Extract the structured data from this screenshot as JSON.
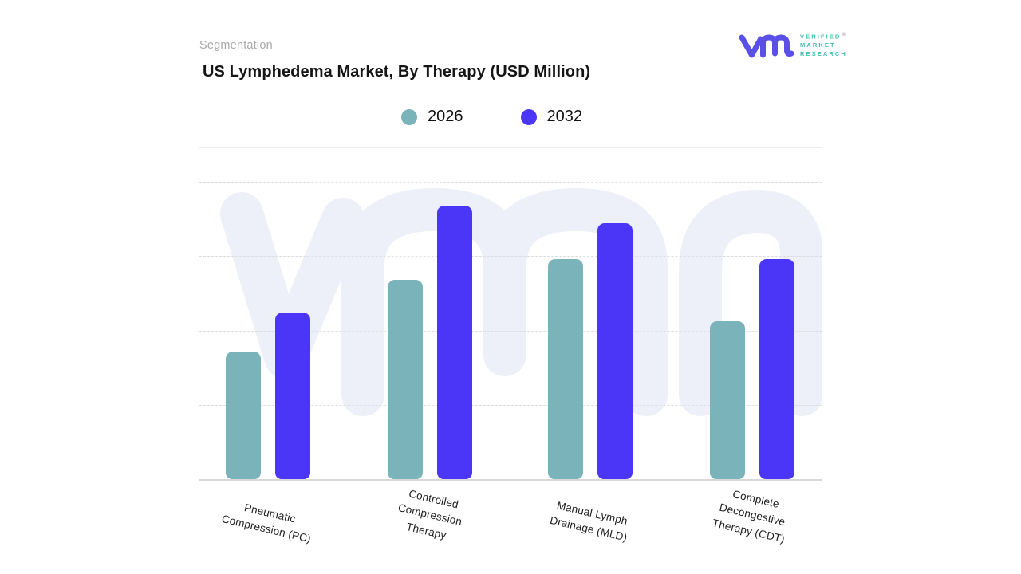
{
  "header": {
    "eyebrow": "Segmentation",
    "title": "US Lymphedema Market, By Therapy (USD Million)"
  },
  "logo": {
    "lines": [
      "VERIFIED",
      "MARKET",
      "RESEARCH"
    ],
    "registered": "®",
    "monogram_color": "#5a50e8",
    "text_color": "#3fbfae"
  },
  "legend": [
    {
      "label": "2026",
      "color": "#7ab4ba"
    },
    {
      "label": "2032",
      "color": "#4b36f8"
    }
  ],
  "chart_data": {
    "type": "bar",
    "title": "US Lymphedema Market, By Therapy (USD Million)",
    "categories": [
      "Pneumatic Compression (PC)",
      "Controlled Compression Therapy",
      "Manual Lymph Drainage (MLD)",
      "Complete Decongestive Therapy (CDT)"
    ],
    "category_lines": [
      [
        "Pneumatic",
        "Compression (PC)"
      ],
      [
        "Controlled",
        "Compression",
        "Therapy"
      ],
      [
        "Manual Lymph",
        "Drainage (MLD)"
      ],
      [
        "Complete",
        "Decongestive",
        "Therapy (CDT)"
      ]
    ],
    "series": [
      {
        "name": "2026",
        "color": "#7ab4ba",
        "values": [
          43,
          67,
          74,
          53
        ]
      },
      {
        "name": "2032",
        "color": "#4b36f8",
        "values": [
          56,
          92,
          86,
          74
        ]
      }
    ],
    "xlabel": "",
    "ylabel": "",
    "ylim": [
      0,
      100
    ],
    "y_axis_labels_visible": false,
    "gridlines": "horizontal-dashed",
    "legend_position": "top-center",
    "note": "Y axis is unlabeled in the source graphic; values are estimated relative heights (percent of plot height)"
  },
  "style": {
    "watermark_color": "#eef0f9",
    "gridline_color": "#dcdce2",
    "axis_color": "#d8d8d8"
  }
}
